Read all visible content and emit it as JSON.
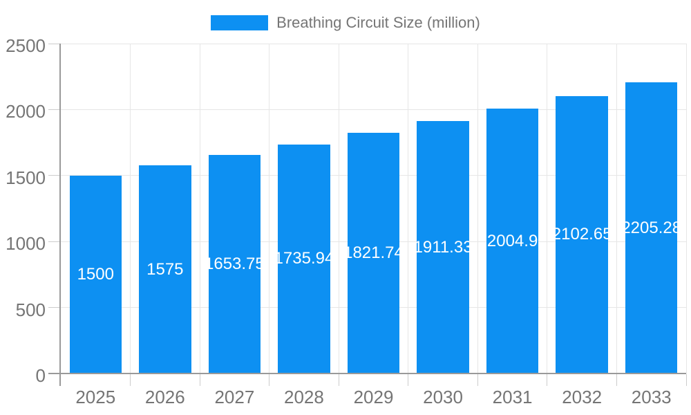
{
  "chart_data": {
    "type": "bar",
    "title": "",
    "legend": "Breathing Circuit Size (million)",
    "legend_position": "top-center",
    "categories": [
      "2025",
      "2026",
      "2027",
      "2028",
      "2029",
      "2030",
      "2031",
      "2032",
      "2033"
    ],
    "values": [
      1500,
      1575,
      1653.75,
      1735.94,
      1821.74,
      1911.33,
      2004.9,
      2102.65,
      2205.28
    ],
    "value_labels": [
      "1500",
      "1575",
      "1653.75",
      "1735.94",
      "1821.74",
      "1911.33",
      "2004.9",
      "2102.65",
      "2205.28"
    ],
    "xlabel": "",
    "ylabel": "",
    "ylim": [
      0,
      2500
    ],
    "yticks": [
      0,
      500,
      1000,
      1500,
      2000,
      2500
    ],
    "grid": "on",
    "colors": {
      "bar": "#0d90f2",
      "bar_label": "#ffffff",
      "grid": "#e6e6e6",
      "tick": "#cccccc",
      "axis": "#999999",
      "text": "#757575",
      "background": "#ffffff"
    }
  }
}
